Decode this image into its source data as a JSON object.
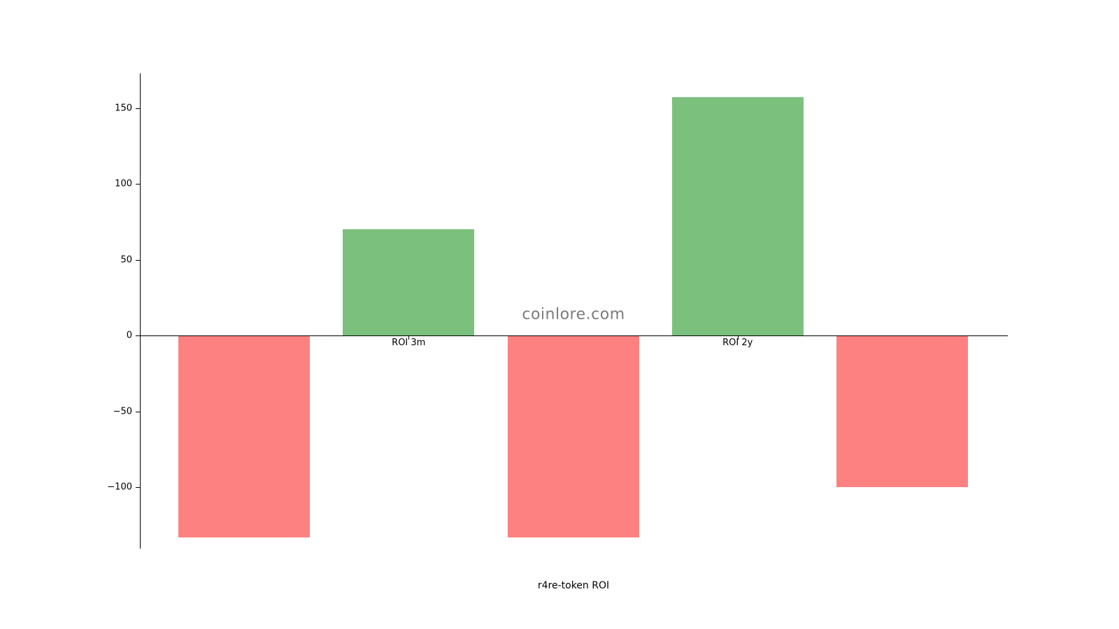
{
  "watermark": {
    "text": "coinlore.com",
    "color": "#7a7a7a"
  },
  "chart_data": {
    "type": "bar",
    "title": "r4re-token ROI",
    "bars": [
      {
        "label": "",
        "value": -133
      },
      {
        "label": "ROI 3m",
        "value": 70
      },
      {
        "label": "",
        "value": -133
      },
      {
        "label": "ROI 2y",
        "value": 157
      },
      {
        "label": "",
        "value": -100
      }
    ],
    "yticks": [
      150,
      100,
      50,
      0,
      -50,
      -100
    ],
    "ytick_labels": [
      "150",
      "100",
      "50",
      "0",
      "−50",
      "−100"
    ],
    "ylim": [
      -141,
      172
    ],
    "colors": {
      "positive_bar": "#7cc07e",
      "negative_bar": "#fd8181",
      "axis": "#000000",
      "tick_text": "#000000"
    },
    "grid": false,
    "legend": false,
    "xlabel": "",
    "ylabel": ""
  }
}
